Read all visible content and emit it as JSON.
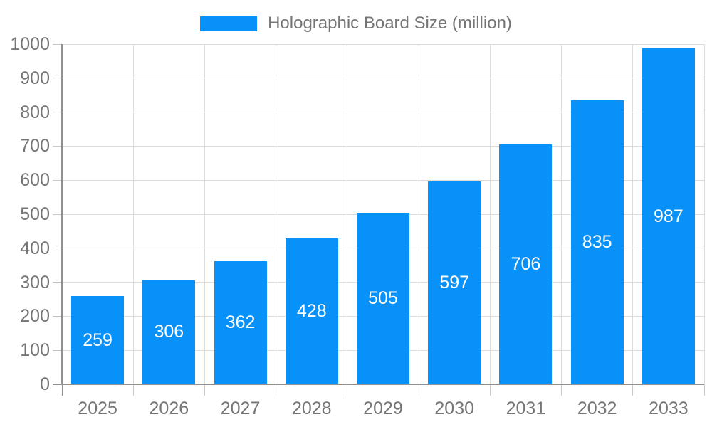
{
  "chart_data": {
    "type": "bar",
    "title": "Holographic Board Size (million)",
    "legend": {
      "label": "Holographic Board Size (million)",
      "position": "top-center"
    },
    "categories": [
      "2025",
      "2026",
      "2027",
      "2028",
      "2029",
      "2030",
      "2031",
      "2032",
      "2033"
    ],
    "series": [
      {
        "name": "Holographic Board Size (million)",
        "values": [
          259,
          306,
          362,
          428,
          505,
          597,
          706,
          835,
          987
        ]
      }
    ],
    "value_labels": [
      "259",
      "306",
      "362",
      "428",
      "505",
      "597",
      "706",
      "835",
      "987"
    ],
    "xlabel": "",
    "ylabel": "",
    "ylim": [
      0,
      1000
    ],
    "y_tick_step": 100,
    "y_tick_labels": [
      "0",
      "100",
      "200",
      "300",
      "400",
      "500",
      "600",
      "700",
      "800",
      "900",
      "1000"
    ],
    "grid": true,
    "colors": {
      "bar": "#0991fa",
      "value_label_text": "#ffffff",
      "axis_label_text": "#757575",
      "legend_text": "#757575",
      "gridline": "#dcdcdc",
      "axis_line": "#909090",
      "tick_line": "#c8c8c8",
      "background": "#ffffff"
    }
  }
}
